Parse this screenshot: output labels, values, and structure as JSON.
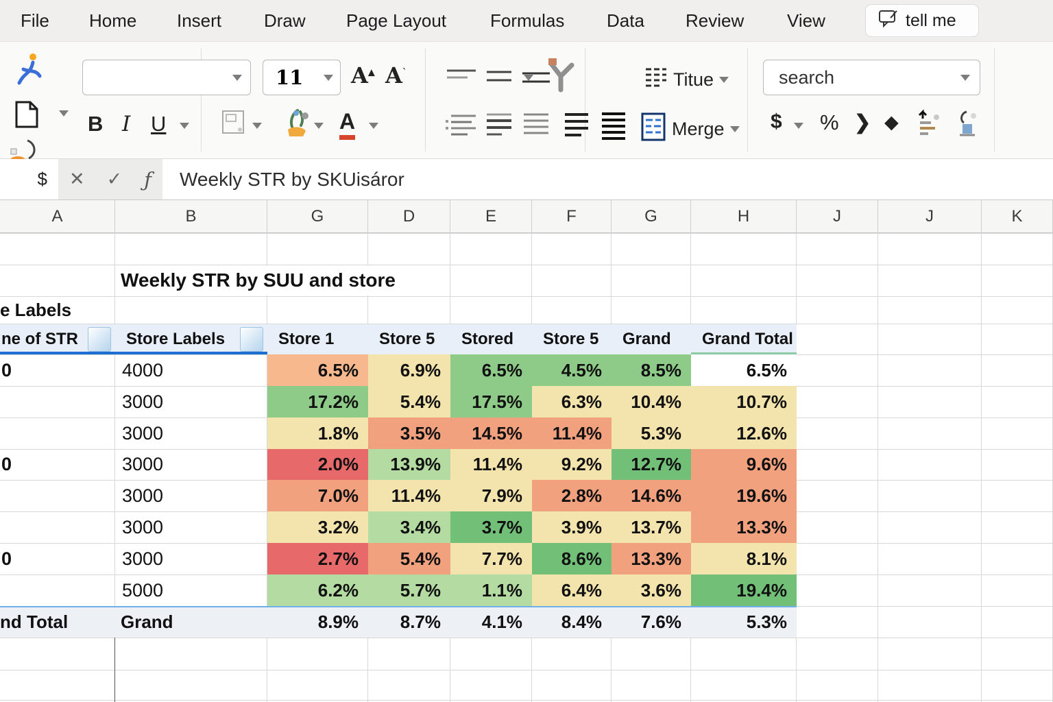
{
  "menubar": {
    "items": [
      "File",
      "Home",
      "Insert",
      "Draw",
      "Page Layout",
      "Formulas",
      "Data",
      "Review",
      "View"
    ],
    "tell_me_label": "tell me"
  },
  "toolbar": {
    "font_name_value": "",
    "font_size_value": "11",
    "bold_label": "B",
    "italic_label": "I",
    "underline_label": "U",
    "grow_font_label": "A",
    "shrink_font_label": "A",
    "font_color_label": "A",
    "style_label": "Titue",
    "merge_label": "Merge",
    "search_value": "search",
    "currency_label": "$",
    "percent_label": "%",
    "chevron_label": "❯",
    "diamond_label": "◆"
  },
  "formula_bar": {
    "name_box_value": "$",
    "cancel_glyph": "✕",
    "enter_glyph": "✓",
    "fx_glyph": "ƒ",
    "formula_value": "Weekly STR by SKUisáror"
  },
  "sheet": {
    "column_letters": [
      "A",
      "B",
      "G",
      "D",
      "E",
      "F",
      "G",
      "H",
      "J",
      "J",
      "K"
    ],
    "title": "Weekly STR by SUU and store",
    "side_label": "e Labels",
    "header": {
      "a_label": "ne of STR",
      "b_label": "Store Labels",
      "stores": [
        "Store 1",
        "Store 5",
        "Stored",
        "Store 5",
        "Grand",
        "Grand Total"
      ]
    },
    "rows": [
      {
        "a": "0",
        "b": "4000",
        "values": [
          "6.5%",
          "6.9%",
          "6.5%",
          "4.5%",
          "8.5%",
          "6.5%"
        ],
        "colors": [
          "orange",
          "yellow",
          "green",
          "green",
          "green",
          "none"
        ]
      },
      {
        "a": "",
        "b": "3000",
        "values": [
          "17.2%",
          "5.4%",
          "17.5%",
          "6.3%",
          "10.4%",
          "10.7%"
        ],
        "colors": [
          "green",
          "yellow",
          "green",
          "yellow",
          "yellow",
          "yellow"
        ]
      },
      {
        "a": "",
        "b": "3000",
        "values": [
          "1.8%",
          "3.5%",
          "14.5%",
          "11.4%",
          "5.3%",
          "12.6%"
        ],
        "colors": [
          "yellow",
          "salmon",
          "salmon",
          "salmon",
          "yellow",
          "yellow"
        ]
      },
      {
        "a": "0",
        "b": "3000",
        "values": [
          "2.0%",
          "13.9%",
          "11.4%",
          "9.2%",
          "12.7%",
          "9.6%"
        ],
        "colors": [
          "red",
          "lightgreen",
          "yellow",
          "yellow",
          "green2",
          "salmon"
        ]
      },
      {
        "a": "",
        "b": "3000",
        "values": [
          "7.0%",
          "11.4%",
          "7.9%",
          "2.8%",
          "14.6%",
          "19.6%"
        ],
        "colors": [
          "salmon",
          "yellow",
          "yellow",
          "salmon",
          "salmon",
          "salmon"
        ]
      },
      {
        "a": "",
        "b": "3000",
        "values": [
          "3.2%",
          "3.4%",
          "3.7%",
          "3.9%",
          "13.7%",
          "13.3%"
        ],
        "colors": [
          "yellow",
          "lightgreen",
          "green2",
          "yellow",
          "yellow",
          "salmon"
        ]
      },
      {
        "a": "0",
        "b": "3000",
        "values": [
          "2.7%",
          "5.4%",
          "7.7%",
          "8.6%",
          "13.3%",
          "8.1%"
        ],
        "colors": [
          "red",
          "salmon",
          "yellow",
          "green2",
          "salmon",
          "yellow"
        ]
      },
      {
        "a": "",
        "b": "5000",
        "values": [
          "6.2%",
          "5.7%",
          "1.1%",
          "6.4%",
          "3.6%",
          "19.4%"
        ],
        "colors": [
          "lightgreen",
          "lightgreen",
          "lightgreen",
          "yellow",
          "yellow",
          "green2"
        ]
      }
    ],
    "grand": {
      "a": "nd Total",
      "b": "Grand",
      "values": [
        "8.9%",
        "8.7%",
        "4.1%",
        "8.4%",
        "7.6%",
        "5.3%"
      ]
    }
  },
  "palette": {
    "orange": "#f6b88c",
    "yellow": "#f3e3ac",
    "salmon": "#f2a17f",
    "red": "#e7696a",
    "green": "#8fcb88",
    "green2": "#72c077",
    "lightgreen": "#b4dba1",
    "none": "#ffffff",
    "header_bg": "#e8eff8",
    "grand_bg": "#edf1f6",
    "filter_underline": "#1c6ed2",
    "grand_total_underline": "#8ccaa6",
    "grand_top_border": "#6fb0e8"
  }
}
